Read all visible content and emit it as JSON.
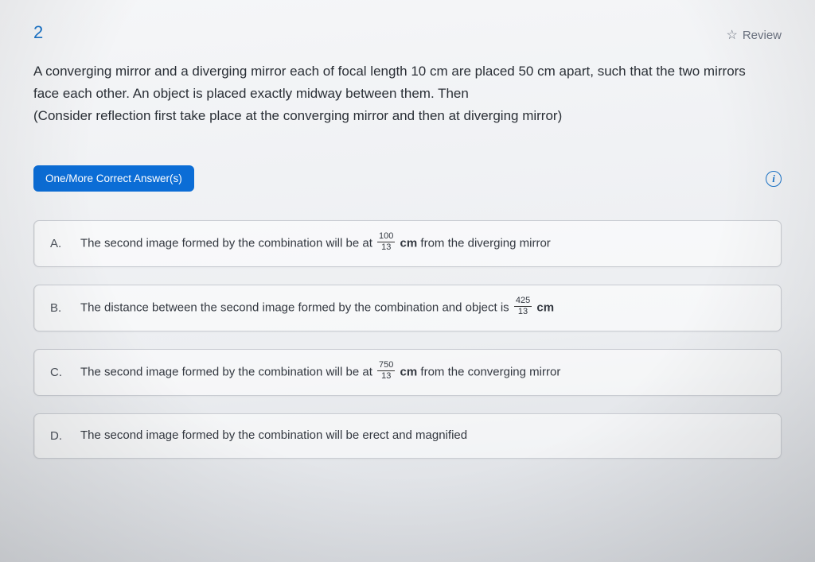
{
  "question_number": "2",
  "review_label": "Review",
  "question_text": "A converging mirror and a diverging mirror each of focal length 10 cm are placed 50 cm apart, such that the two mirrors face each other. An object is placed exactly midway between them. Then\n(Consider reflection first take place at the converging mirror and then at diverging mirror)",
  "badge_label": "One/More Correct Answer(s)",
  "options": [
    {
      "letter": "A.",
      "pre": "The second image formed by the combination will be at ",
      "frac_num": "100",
      "frac_den": "13",
      "post_frac": " cm",
      "tail": " from the diverging mirror"
    },
    {
      "letter": "B.",
      "pre": "The distance between the second image formed by the combination and object is ",
      "frac_num": "425",
      "frac_den": "13",
      "post_frac": " cm",
      "tail": ""
    },
    {
      "letter": "C.",
      "pre": "The second image formed by the combination will be at ",
      "frac_num": "750",
      "frac_den": "13",
      "post_frac": " cm",
      "tail": " from the converging mirror"
    },
    {
      "letter": "D.",
      "pre": "The second image formed by the combination will be erect and magnified",
      "frac_num": "",
      "frac_den": "",
      "post_frac": "",
      "tail": ""
    }
  ],
  "colors": {
    "accent": "#0b6dd6",
    "qnum": "#1a73c7",
    "text": "#2a2f36",
    "muted": "#6b7280",
    "option_border": "#c9ccd2",
    "bg_top": "#f5f6f8",
    "bg_bottom": "#d8dbe0"
  }
}
